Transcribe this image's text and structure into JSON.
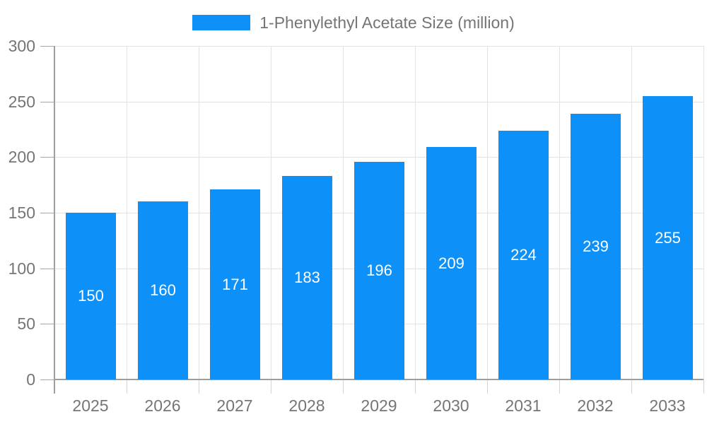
{
  "chart_data": {
    "type": "bar",
    "legend": "1-Phenylethyl Acetate Size (million)",
    "categories": [
      "2025",
      "2026",
      "2027",
      "2028",
      "2029",
      "2030",
      "2031",
      "2032",
      "2033"
    ],
    "values": [
      150,
      160,
      171,
      183,
      196,
      209,
      224,
      239,
      255
    ],
    "title": "",
    "xlabel": "",
    "ylabel": "",
    "ylim": [
      0,
      300
    ],
    "ytick_step": 50,
    "yticks": [
      0,
      50,
      100,
      150,
      200,
      250,
      300
    ],
    "grid": true,
    "legend_position": "top-center",
    "bar_value_labels_inside": true,
    "colors": {
      "bar": "#0d90f8",
      "bar_label": "#ffffff",
      "axis_line": "#9e9e9e",
      "gridline": "#e3e3e3",
      "x_tick_mark": "#d4d4d4",
      "y_tick_mark": "#a6a6a6",
      "tick_label": "#757575",
      "legend_text": "#757575",
      "background": "#ffffff"
    }
  }
}
